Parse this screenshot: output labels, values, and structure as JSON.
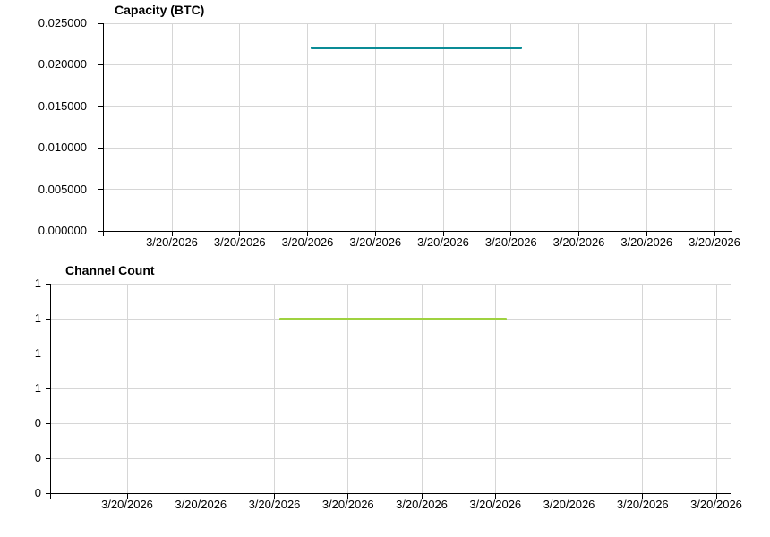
{
  "chart_data": [
    {
      "type": "line",
      "title": "Capacity (BTC)",
      "ylim": [
        0,
        0.025
      ],
      "y_tick_labels": [
        "0.000000",
        "0.005000",
        "0.010000",
        "0.015000",
        "0.020000",
        "0.025000"
      ],
      "x_tick_labels": [
        "3/20/2026",
        "3/20/2026",
        "3/20/2026",
        "3/20/2026",
        "3/20/2026",
        "3/20/2026",
        "3/20/2026",
        "3/20/2026",
        "3/20/2026"
      ],
      "grid": true,
      "legend_position": "none",
      "series": [
        {
          "name": "Capacity (BTC)",
          "color": "#0a8c96",
          "value": 0.022,
          "x_start_frac": 0.329,
          "x_end_frac": 0.665
        }
      ]
    },
    {
      "type": "line",
      "title": "Channel Count",
      "ylim": [
        0,
        1.2
      ],
      "y_tick_labels": [
        "0",
        "0",
        "0",
        "1",
        "1",
        "1",
        "1"
      ],
      "x_tick_labels": [
        "3/20/2026",
        "3/20/2026",
        "3/20/2026",
        "3/20/2026",
        "3/20/2026",
        "3/20/2026",
        "3/20/2026",
        "3/20/2026",
        "3/20/2026"
      ],
      "grid": true,
      "legend_position": "none",
      "series": [
        {
          "name": "Channel Count",
          "color": "#9fd240",
          "value": 1,
          "x_start_frac": 0.336,
          "x_end_frac": 0.67
        }
      ]
    }
  ]
}
